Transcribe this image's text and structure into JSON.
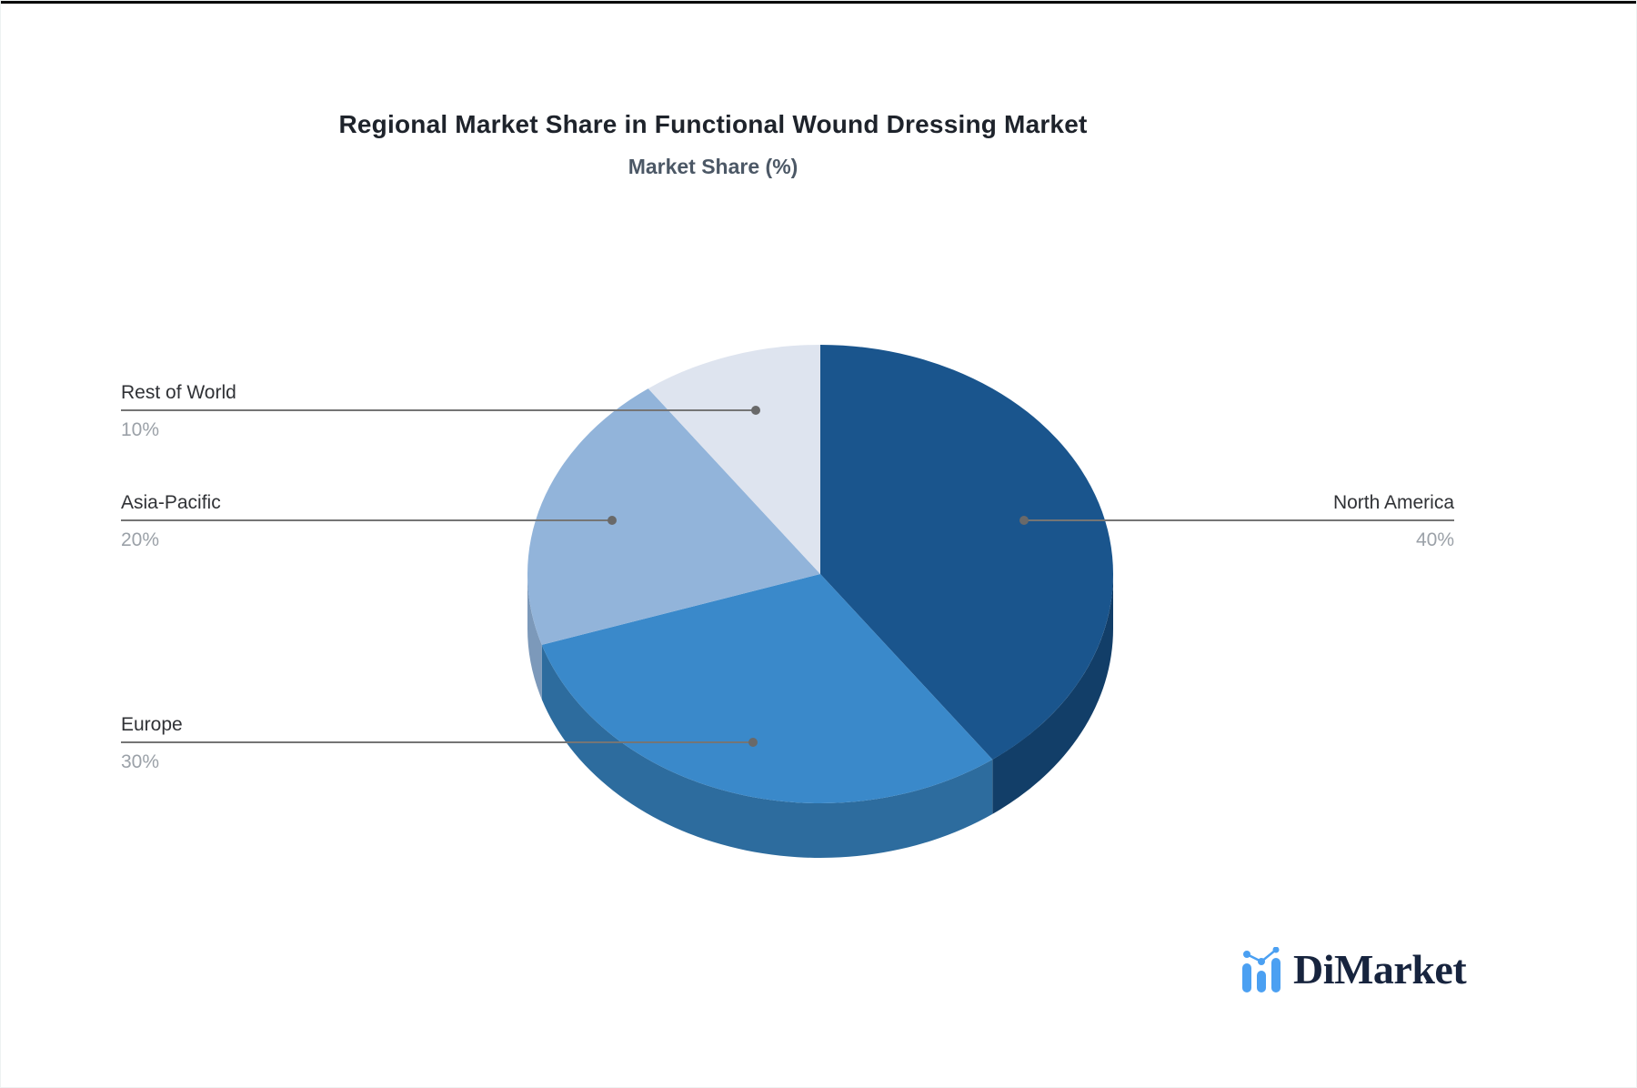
{
  "chart_data": {
    "type": "pie",
    "style": "3d",
    "title": "Regional Market Share in Functional Wound Dressing Market",
    "subtitle": "Market Share (%)",
    "unit": "%",
    "start_angle": "12-oclock",
    "direction": "clockwise",
    "legend_position": "none",
    "labels_position": "callout-leader-lines",
    "slices": [
      {
        "label": "North America",
        "value": 40,
        "pct": "40%",
        "color": "#1A558D",
        "side_color": "#123E68"
      },
      {
        "label": "Europe",
        "value": 30,
        "pct": "30%",
        "color": "#3A89CA",
        "side_color": "#2D6C9E"
      },
      {
        "label": "Asia-Pacific",
        "value": 20,
        "pct": "20%",
        "color": "#92B4DA",
        "side_color": "#7C99BA"
      },
      {
        "label": "Rest of World",
        "value": 10,
        "pct": "10%",
        "color": "#DEE4EF",
        "side_color": "#BCC7D8"
      }
    ]
  },
  "callout_style": {
    "line_color": "#757575",
    "name_color": "#303236",
    "pct_color": "#9BA1A8"
  },
  "branding": {
    "logo_text": "DiMarket",
    "logo_icon": "mini-bar-line-chart-icon",
    "icon_color": "#4BA0F2",
    "text_color": "#17243E"
  }
}
